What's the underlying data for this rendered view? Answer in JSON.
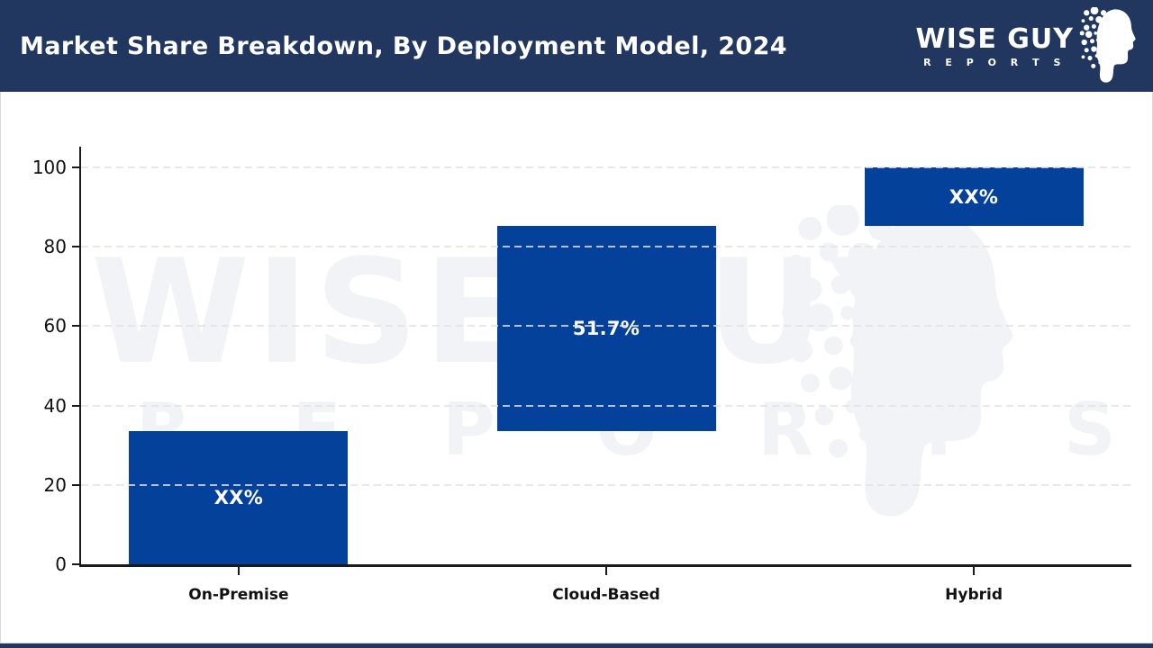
{
  "header": {
    "title": "Market Share Breakdown, By Deployment Model, 2024",
    "logo": {
      "name": "WISE GUY",
      "tagline": "R E P O R T S"
    }
  },
  "watermark": {
    "name": "WISE GUY",
    "tagline": "R E P O R T S"
  },
  "colors": {
    "header_bg": "#21375f",
    "footer_bg": "#21375f",
    "bar": "#04419b",
    "bar_label": "#ffffff",
    "grid": "#e2e2e2",
    "axis": "#1a1a1a",
    "watermark": "#f2f3f6"
  },
  "chart_data": {
    "type": "bar",
    "subtype": "floating-segment waterfall of market share percentages",
    "title": "Market Share Breakdown, By Deployment Model, 2024",
    "categories": [
      "On-Premise",
      "Cloud-Based",
      "Hybrid"
    ],
    "segments": [
      {
        "category": "On-Premise",
        "start": 0,
        "end": 33.5,
        "label": "XX%"
      },
      {
        "category": "Cloud-Based",
        "start": 33.5,
        "end": 85.2,
        "label": "51.7%"
      },
      {
        "category": "Hybrid",
        "start": 85.2,
        "end": 100,
        "label": "XX%"
      }
    ],
    "xlabel": "",
    "ylabel": "",
    "ylim": [
      0,
      100
    ],
    "yticks": [
      0,
      20,
      40,
      60,
      80,
      100
    ],
    "grid": "horizontal-dashed-over-bars",
    "legend": "none"
  }
}
